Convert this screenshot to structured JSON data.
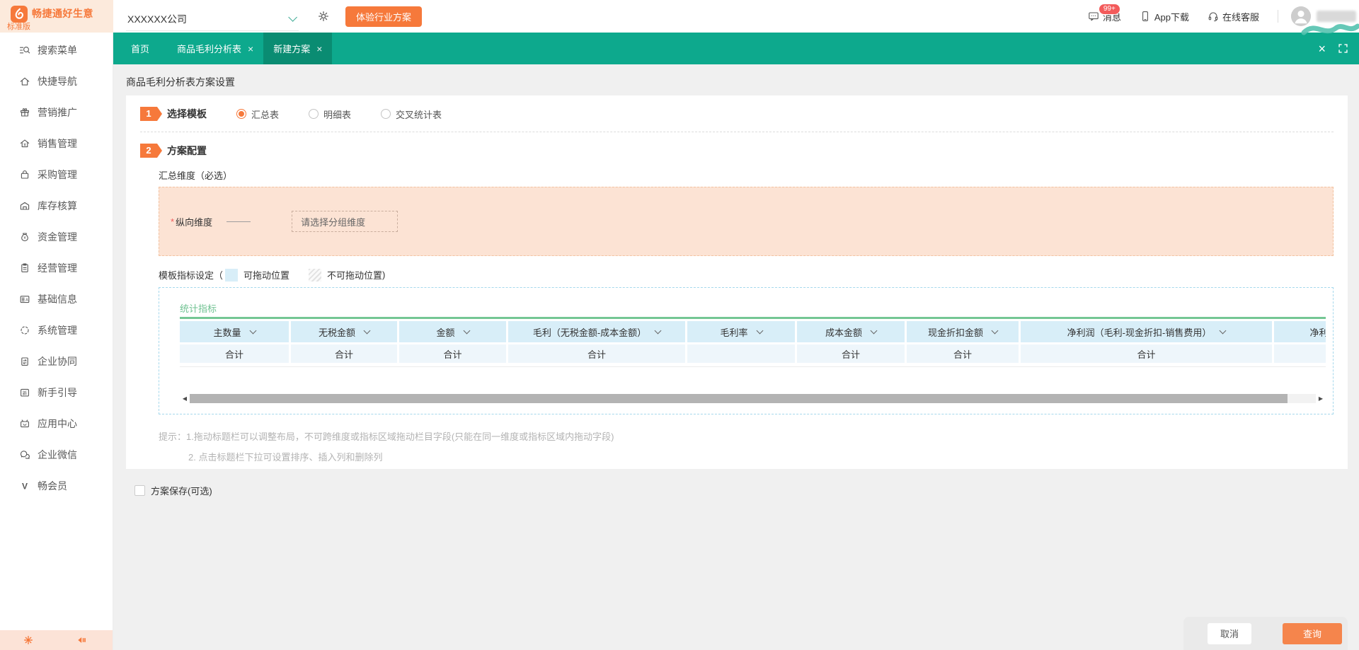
{
  "brand": {
    "name": "畅捷通好生意",
    "edition": "标准版"
  },
  "topbar": {
    "company": "XXXXXX公司",
    "trial_button": "体验行业方案",
    "items": [
      {
        "id": "messages",
        "icon": "message-icon",
        "label": "消息",
        "badge": "99+"
      },
      {
        "id": "app-download",
        "icon": "phone-icon",
        "label": "App下载",
        "badge": ""
      },
      {
        "id": "online-service",
        "icon": "headset-icon",
        "label": "在线客服",
        "badge": ""
      }
    ]
  },
  "tabbar": {
    "tabs": [
      {
        "id": "home",
        "label": "首页",
        "closable": false,
        "active": false
      },
      {
        "id": "gross-profit-report",
        "label": "商品毛利分析表",
        "closable": true,
        "active": false
      },
      {
        "id": "new-plan",
        "label": "新建方案",
        "closable": true,
        "active": true
      }
    ]
  },
  "sidebar": {
    "items": [
      {
        "id": "search-menu",
        "icon": "search-icon",
        "label": "搜索菜单"
      },
      {
        "id": "quick-nav",
        "icon": "home-icon",
        "label": "快捷导航"
      },
      {
        "id": "marketing",
        "icon": "gift-icon",
        "label": "营销推广"
      },
      {
        "id": "sales",
        "icon": "sales-house-icon",
        "label": "销售管理"
      },
      {
        "id": "purchase",
        "icon": "shopping-bag-icon",
        "label": "采购管理"
      },
      {
        "id": "inventory",
        "icon": "warehouse-icon",
        "label": "库存核算"
      },
      {
        "id": "funds",
        "icon": "money-bag-icon",
        "label": "资金管理"
      },
      {
        "id": "operations",
        "icon": "clipboard-icon",
        "label": "经营管理"
      },
      {
        "id": "base-info",
        "icon": "id-card-icon",
        "label": "基础信息"
      },
      {
        "id": "system",
        "icon": "dashed-circle-icon",
        "label": "系统管理"
      },
      {
        "id": "collaboration",
        "icon": "sync-clipboard-icon",
        "label": "企业协同"
      },
      {
        "id": "newbie-guide",
        "icon": "new-badge-icon",
        "label": "新手引导"
      },
      {
        "id": "app-center",
        "icon": "app-tv-icon",
        "label": "应用中心"
      },
      {
        "id": "enterprise-wechat",
        "icon": "wechat-icon",
        "label": "企业微信"
      },
      {
        "id": "member",
        "icon": "v-member-icon",
        "label": "畅会员"
      }
    ]
  },
  "main": {
    "page_title": "商品毛利分析表方案设置",
    "step1": {
      "num": "1",
      "title": "选择模板",
      "options": [
        {
          "label": "汇总表",
          "selected": true
        },
        {
          "label": "明细表",
          "selected": false
        },
        {
          "label": "交叉统计表",
          "selected": false
        }
      ]
    },
    "step2": {
      "num": "2",
      "title": "方案配置",
      "dimension": {
        "label": "汇总维度（必选）",
        "required_mark": "*",
        "field_label": "纵向维度",
        "placeholder": "请选择分组维度"
      },
      "legend": {
        "label": "模板指标设定（",
        "draggable": "可拖动位置",
        "not_draggable": "不可拖动位置",
        "suffix": ")"
      },
      "table": {
        "group_label": "统计指标",
        "total_text": "合计",
        "columns": [
          {
            "label": "主数量",
            "total": "合计"
          },
          {
            "label": "无税金额",
            "total": "合计"
          },
          {
            "label": "金额",
            "total": "合计"
          },
          {
            "label": "毛利（无税金额-成本金额）",
            "total": "合计"
          },
          {
            "label": "毛利率",
            "total": ""
          },
          {
            "label": "成本金额",
            "total": "合计"
          },
          {
            "label": "现金折扣金额",
            "total": "合计"
          },
          {
            "label": "净利润（毛利-现金折扣-销售费用）",
            "total": "合计"
          },
          {
            "label": "净利率",
            "total": ""
          }
        ]
      },
      "tips": {
        "label": "提示：",
        "items": [
          "1.拖动标题栏可以调整布局，不可跨维度或指标区域拖动栏目字段(只能在同一维度或指标区域内拖动字段)",
          "2. 点击标题栏下拉可设置排序、插入列和删除列"
        ]
      }
    },
    "save_checkbox": "方案保存(可选)",
    "actions": {
      "cancel": "取消",
      "query": "查询"
    }
  },
  "colors": {
    "accent_orange": "#F6793B",
    "teal_bar": "#0DA98D",
    "teal_active_tab": "#0A8C72",
    "badge_red": "#F35B5B",
    "table_header_blue": "#D8EEF8",
    "indicator_green": "#6FC291",
    "peach_panel": "#FCE3D4"
  }
}
